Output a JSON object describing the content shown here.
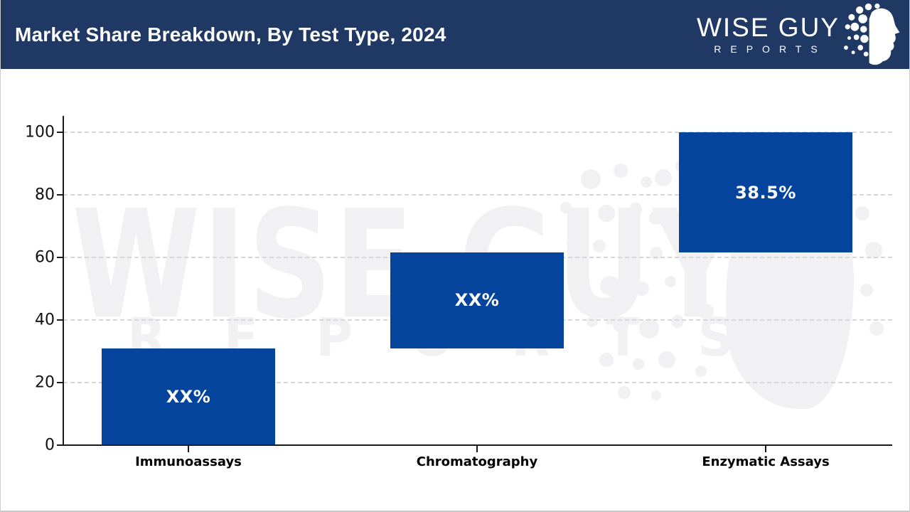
{
  "header": {
    "title": "Market Share Breakdown, By Test Type, 2024"
  },
  "logo": {
    "line1": "WISE GUY",
    "line2": "REPORTS"
  },
  "watermark": {
    "line1": "WISE GUY",
    "line2": "REPORTS"
  },
  "chart_data": {
    "type": "bar",
    "subtype": "floating-segment-waterfall",
    "title": "Market Share Breakdown, By Test Type, 2024",
    "categories": [
      "Immunoassays",
      "Chromatography",
      "Enzymatic Assays"
    ],
    "segments": [
      {
        "category": "Immunoassays",
        "from": 0,
        "to": 31,
        "label": "XX%"
      },
      {
        "category": "Chromatography",
        "from": 31,
        "to": 61.5,
        "label": "XX%"
      },
      {
        "category": "Enzymatic Assays",
        "from": 61.5,
        "to": 100,
        "label": "38.5%"
      }
    ],
    "yticks": [
      0,
      20,
      40,
      60,
      80,
      100
    ],
    "ylim": [
      0,
      105
    ],
    "xlabel": "",
    "ylabel": "",
    "grid": "horizontal-dashed",
    "legend": "none",
    "bar_color": "#04449C",
    "header_color": "#1F3864",
    "grid_color": "#d7d7d7",
    "axis_color": "#1a1a1a"
  }
}
